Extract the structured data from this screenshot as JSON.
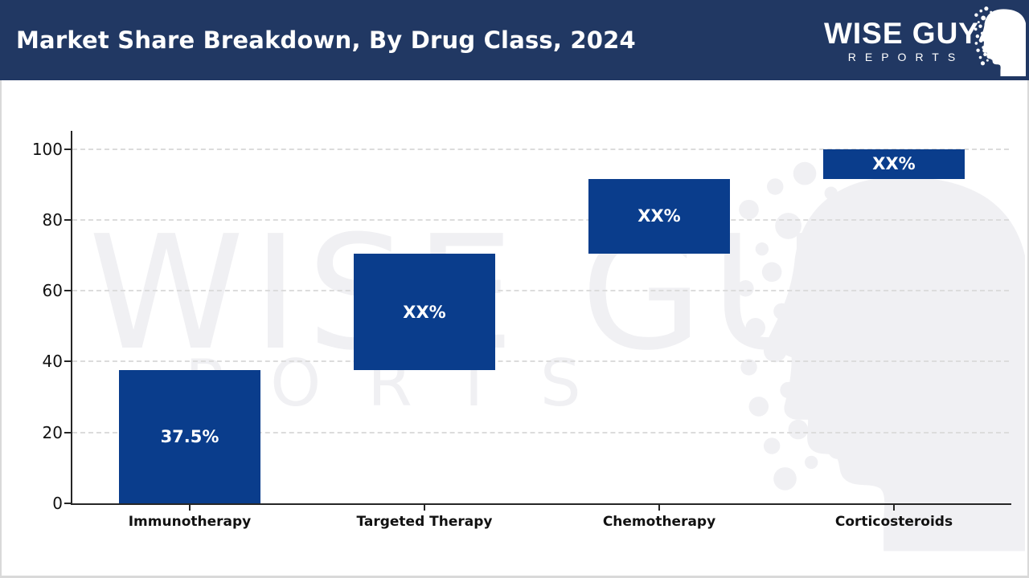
{
  "header": {
    "title": "Market Share Breakdown, By Drug Class, 2024",
    "logo": {
      "line1": "WISE GUY",
      "line2": "REPORTS"
    }
  },
  "watermark": {
    "line1": "WISE GUY",
    "line2": "PORTS"
  },
  "chart_data": {
    "type": "bar",
    "subtype": "waterfall",
    "title": "Market Share Breakdown, By Drug Class, 2024",
    "xlabel": "",
    "ylabel": "",
    "categories": [
      "Immunotherapy",
      "Targeted Therapy",
      "Chemotherapy",
      "Corticosteroids"
    ],
    "segments": [
      {
        "category": "Immunotherapy",
        "start": 0,
        "end": 37.5,
        "label": "37.5%"
      },
      {
        "category": "Targeted Therapy",
        "start": 37.5,
        "end": 70.5,
        "label": "XX%"
      },
      {
        "category": "Chemotherapy",
        "start": 70.5,
        "end": 91.5,
        "label": "XX%"
      },
      {
        "category": "Corticosteroids",
        "start": 91.5,
        "end": 100,
        "label": "XX%"
      }
    ],
    "yticks": [
      0,
      20,
      40,
      60,
      80,
      100
    ],
    "ylim": [
      0,
      100
    ],
    "grid": "horizontal-dashed",
    "legend": "none",
    "bar_color": "#0a3d8c",
    "bar_label_color": "#ffffff"
  },
  "colors": {
    "header_bg": "#213863",
    "bar": "#0a3d8c",
    "axis": "#262626",
    "grid": "#dcdcdc",
    "watermark": "#f0f0f3",
    "frame_border": "#d9d9d9"
  }
}
